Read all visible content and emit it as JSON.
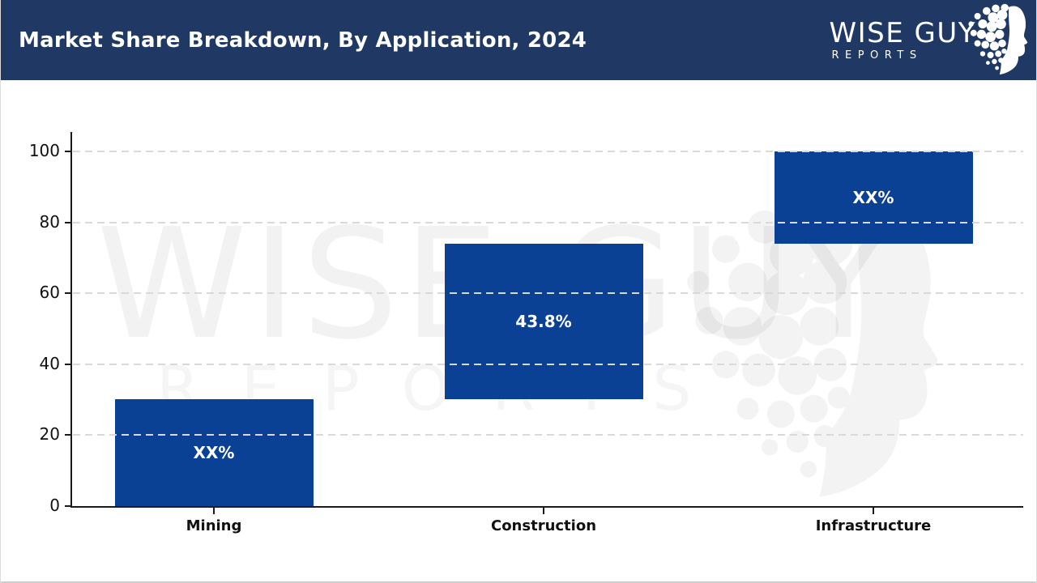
{
  "header": {
    "title": "Market Share Breakdown, By Application, 2024",
    "bg_color": "#1f3864",
    "logo": {
      "primary": "WISE GUY",
      "secondary": "REPORTS"
    }
  },
  "watermark": {
    "line1": "WISE GUY",
    "line2": "REPORTS"
  },
  "chart_data": {
    "type": "bar",
    "variant": "floating-segmented-bar",
    "title": "Market Share Breakdown, By Application, 2024",
    "categories": [
      "Mining",
      "Construction",
      "Infrastructure"
    ],
    "bars": [
      {
        "category": "Mining",
        "start": 0,
        "end": 30.2,
        "value_label": "XX%"
      },
      {
        "category": "Construction",
        "start": 30.2,
        "end": 74,
        "value_label": "43.8%"
      },
      {
        "category": "Infrastructure",
        "start": 74,
        "end": 100,
        "value_label": "XX%"
      }
    ],
    "y_ticks": [
      0,
      20,
      40,
      60,
      80,
      100
    ],
    "ylim": [
      0,
      100
    ],
    "xlabel": "",
    "ylabel": "",
    "grid": "horizontal-dashed",
    "legend": "none",
    "bar_color": "#0b4194",
    "value_label_color": "#ffffff",
    "axis_color": "#1a1a1a",
    "grid_color": "#d9d9d9"
  }
}
